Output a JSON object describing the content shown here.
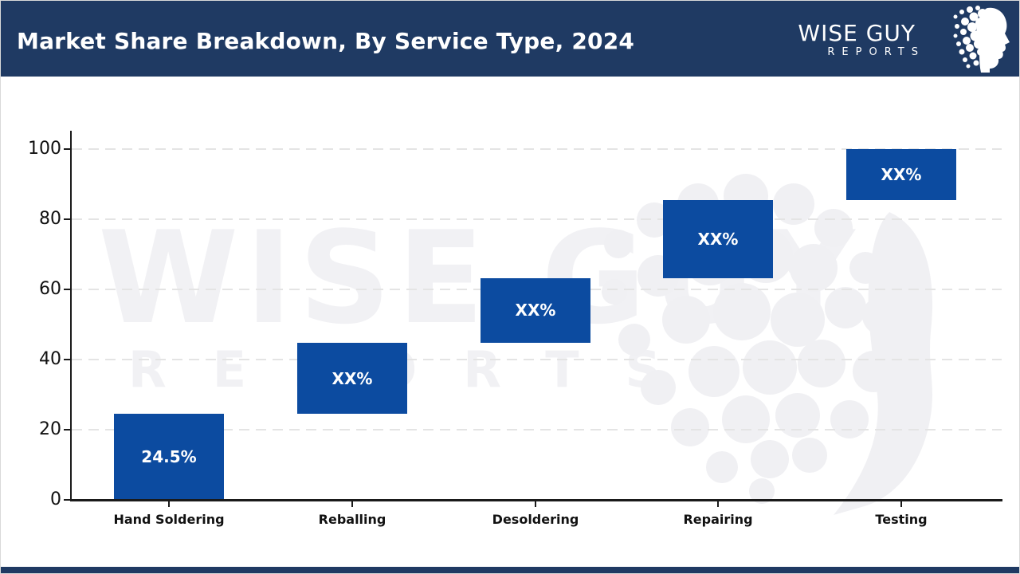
{
  "header": {
    "title": "Market Share Breakdown, By Service Type, 2024",
    "logo": {
      "line1": "WISE GUY",
      "line2": "REPORTS"
    }
  },
  "watermark": {
    "line1": "WISE GUY",
    "line2": "REPORTS"
  },
  "colors": {
    "header_bg": "#1f3a63",
    "bar_fill": "#0c4ba0",
    "bar_label": "#ffffff",
    "gridline": "#e4e4e4",
    "axis": "#1a1a1a",
    "watermark": "#f1f1f4"
  },
  "chart_data": {
    "type": "bar",
    "subtype": "waterfall",
    "title": "Market Share Breakdown, By Service Type, 2024",
    "xlabel": "",
    "ylabel": "",
    "ylim": [
      0,
      100
    ],
    "yticks": [
      0,
      20,
      40,
      60,
      80,
      100
    ],
    "grid": "dashed-horizontal",
    "legend": "none",
    "categories": [
      "Hand Soldering",
      "Reballing",
      "Desoldering",
      "Repairing",
      "Testing"
    ],
    "bars": [
      {
        "category": "Hand Soldering",
        "start": 0,
        "end": 24.5,
        "label": "24.5%"
      },
      {
        "category": "Reballing",
        "start": 24.5,
        "end": 44.8,
        "label": "XX%"
      },
      {
        "category": "Desoldering",
        "start": 44.8,
        "end": 63.2,
        "label": "XX%"
      },
      {
        "category": "Repairing",
        "start": 63.2,
        "end": 85.5,
        "label": "XX%"
      },
      {
        "category": "Testing",
        "start": 85.5,
        "end": 100,
        "label": "XX%"
      }
    ]
  }
}
